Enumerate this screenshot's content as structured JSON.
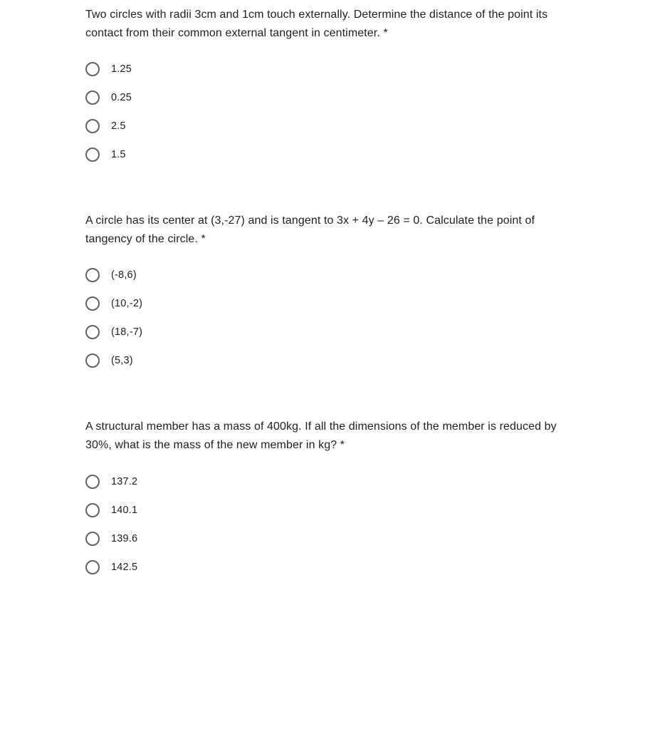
{
  "questions": [
    {
      "prompt": "Two circles with radii 3cm and 1cm touch externally. Determine the distance of the point its contact from their common external tangent in centimeter. *",
      "options": [
        "1.25",
        "0.25",
        "2.5",
        "1.5"
      ]
    },
    {
      "prompt": "A circle has its center at (3,-27) and is tangent to 3x + 4y – 26 = 0. Calculate the point of tangency of the circle. *",
      "options": [
        "(-8,6)",
        "(10,-2)",
        "(18,-7)",
        "(5,3)"
      ]
    },
    {
      "prompt": "A structural member has a mass of 400kg. If all the dimensions of the member is reduced by 30%, what is the mass of the new member in kg? *",
      "options": [
        "137.2",
        "140.1",
        "139.6",
        "142.5"
      ]
    }
  ],
  "style": {
    "text_color": "#202124",
    "radio_border_color": "#5f6368",
    "background_color": "#ffffff",
    "question_fontsize": 16,
    "option_fontsize": 14.5
  }
}
